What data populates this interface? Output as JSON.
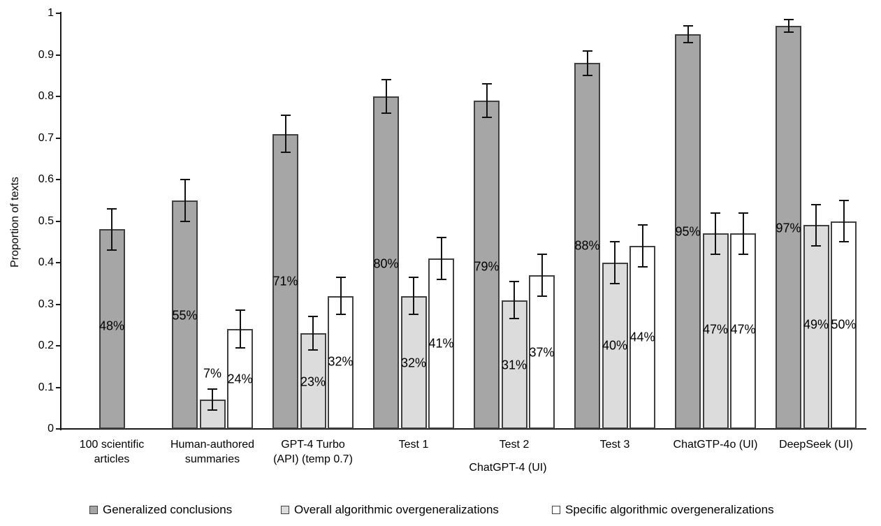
{
  "chart_data": {
    "type": "bar",
    "title": "",
    "ylabel": "Proportion of texts",
    "xlabel": "",
    "ylim": [
      0,
      1
    ],
    "grid": false,
    "legend_position": "bottom",
    "error_bars": true,
    "yticks": [
      {
        "v": 0,
        "label": "0"
      },
      {
        "v": 0.1,
        "label": "0.1"
      },
      {
        "v": 0.2,
        "label": "0.2"
      },
      {
        "v": 0.3,
        "label": "0.3"
      },
      {
        "v": 0.4,
        "label": "0.4"
      },
      {
        "v": 0.5,
        "label": "0.5"
      },
      {
        "v": 0.6,
        "label": "0.6"
      },
      {
        "v": 0.7,
        "label": "0.7"
      },
      {
        "v": 0.8,
        "label": "0.8"
      },
      {
        "v": 0.9,
        "label": "0.9"
      },
      {
        "v": 1,
        "label": "1"
      }
    ],
    "categories": [
      {
        "name": "100 scientific articles",
        "lines": [
          "100 scientific",
          "articles"
        ]
      },
      {
        "name": "Human-authored summaries",
        "lines": [
          "Human-authored",
          "summaries"
        ]
      },
      {
        "name": "GPT-4 Turbo (API) (temp 0.7)",
        "lines": [
          "GPT-4 Turbo",
          "(API) (temp 0.7)"
        ]
      },
      {
        "name": "Test 1",
        "lines": [
          "Test 1"
        ]
      },
      {
        "name": "Test 2",
        "lines": [
          "Test 2"
        ]
      },
      {
        "name": "Test 3",
        "lines": [
          "Test 3"
        ]
      },
      {
        "name": "ChatGTP-4o (UI)",
        "lines": [
          "ChatGTP-4o (UI)"
        ]
      },
      {
        "name": "DeepSeek (UI)",
        "lines": [
          "DeepSeek (UI)"
        ]
      }
    ],
    "group_label": "ChatGPT-4 (UI)",
    "group_label_spans": [
      "Test 1",
      "Test 2",
      "Test 3"
    ],
    "colors": {
      "bar_border": "#404040",
      "axis": "#1a1a1a",
      "error_bar": "#111111"
    },
    "series": [
      {
        "name": "Generalized conclusions",
        "fill": "#a6a6a6",
        "values": [
          0.48,
          0.55,
          0.71,
          0.8,
          0.79,
          0.88,
          0.95,
          0.97
        ],
        "labels": [
          "48%",
          "55%",
          "71%",
          "80%",
          "79%",
          "88%",
          "95%",
          "97%"
        ],
        "label_y": [
          0.247,
          0.272,
          0.355,
          0.397,
          0.39,
          0.44,
          0.474,
          0.482
        ],
        "errors": [
          [
            0.43,
            0.53
          ],
          [
            0.5,
            0.6
          ],
          [
            0.665,
            0.755
          ],
          [
            0.76,
            0.84
          ],
          [
            0.75,
            0.83
          ],
          [
            0.85,
            0.91
          ],
          [
            0.93,
            0.97
          ],
          [
            0.955,
            0.985
          ]
        ]
      },
      {
        "name": "Overall algorithmic overgeneralizations",
        "fill": "#dcdcdc",
        "values": [
          null,
          0.07,
          0.23,
          0.32,
          0.31,
          0.4,
          0.47,
          0.49
        ],
        "labels": [
          null,
          "7%",
          "23%",
          "32%",
          "31%",
          "40%",
          "47%",
          "49%"
        ],
        "label_y": [
          null,
          0.133,
          0.113,
          0.158,
          0.153,
          0.2,
          0.239,
          0.25
        ],
        "errors": [
          null,
          [
            0.045,
            0.095
          ],
          [
            0.19,
            0.27
          ],
          [
            0.275,
            0.365
          ],
          [
            0.265,
            0.355
          ],
          [
            0.35,
            0.45
          ],
          [
            0.42,
            0.52
          ],
          [
            0.44,
            0.54
          ]
        ]
      },
      {
        "name": "Specific algorithmic overgeneralizations",
        "fill": "#ffffff",
        "values": [
          null,
          0.24,
          0.32,
          0.41,
          0.37,
          0.44,
          0.47,
          0.5
        ],
        "labels": [
          null,
          "24%",
          "32%",
          "41%",
          "37%",
          "44%",
          "47%",
          "50%"
        ],
        "label_y": [
          null,
          0.12,
          0.161,
          0.205,
          0.183,
          0.22,
          0.239,
          0.25
        ],
        "errors": [
          null,
          [
            0.195,
            0.285
          ],
          [
            0.275,
            0.365
          ],
          [
            0.36,
            0.46
          ],
          [
            0.32,
            0.42
          ],
          [
            0.39,
            0.49
          ],
          [
            0.42,
            0.52
          ],
          [
            0.45,
            0.55
          ]
        ]
      }
    ]
  }
}
